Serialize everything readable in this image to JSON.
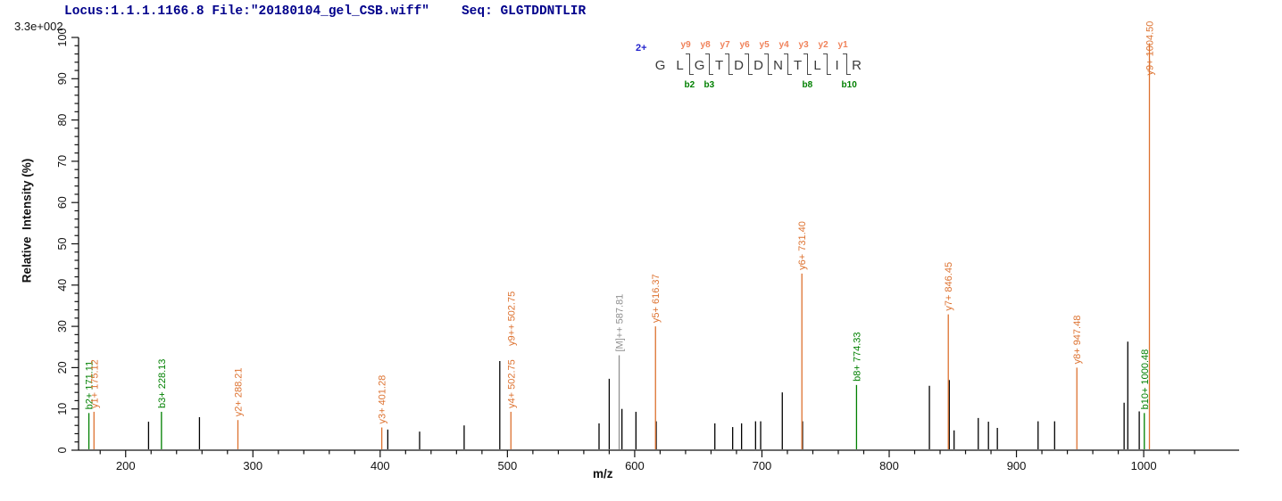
{
  "header": {
    "locus_file": "Locus:1.1.1.1166.8 File:\"20180104_gel_CSB.wiff\"",
    "seq_text": "Seq: GLGTDDNTLIR",
    "max_intensity_label": "3.3e+002"
  },
  "peptide": {
    "charge_label": "2+",
    "residues": [
      "G",
      "L",
      "G",
      "T",
      "D",
      "D",
      "N",
      "T",
      "L",
      "I",
      "R"
    ],
    "cleavages": [
      {
        "after": 2,
        "y": "y9",
        "b": "b2"
      },
      {
        "after": 3,
        "y": "y8",
        "b": "b3"
      },
      {
        "after": 4,
        "y": "y7",
        "b": ""
      },
      {
        "after": 5,
        "y": "y6",
        "b": ""
      },
      {
        "after": 6,
        "y": "y5",
        "b": ""
      },
      {
        "after": 7,
        "y": "y4",
        "b": ""
      },
      {
        "after": 8,
        "y": "y3",
        "b": "b8"
      },
      {
        "after": 9,
        "y": "y2",
        "b": ""
      },
      {
        "after": 10,
        "y": "y1",
        "b": "b10"
      }
    ]
  },
  "chart_data": {
    "type": "bar",
    "subtype": "ms2-stick-spectrum",
    "title": "",
    "xlabel": "m/z",
    "ylabel": "Relative  Intensity (%)",
    "xlim": [
      163,
      1075
    ],
    "ylim": [
      0,
      100
    ],
    "x_major_ticks": [
      200,
      300,
      400,
      500,
      600,
      700,
      800,
      900,
      1000
    ],
    "x_minor_step": 20,
    "x_minor_range": [
      180,
      1040
    ],
    "y_major_ticks": [
      0,
      10,
      20,
      30,
      40,
      50,
      60,
      70,
      80,
      90,
      100
    ],
    "y_minor_step": 2,
    "grid": false,
    "legend": "none",
    "peaks": [
      {
        "mz": 171.11,
        "intensity": 9.0,
        "type": "b",
        "label": "b2+ 171.11"
      },
      {
        "mz": 175.12,
        "intensity": 9.3,
        "type": "y",
        "label": "y1+ 175.12"
      },
      {
        "mz": 218.0,
        "intensity": 6.9,
        "type": "peak",
        "label": ""
      },
      {
        "mz": 228.13,
        "intensity": 9.3,
        "type": "b",
        "label": "b3+ 228.13"
      },
      {
        "mz": 258.0,
        "intensity": 8.0,
        "type": "peak",
        "label": ""
      },
      {
        "mz": 288.21,
        "intensity": 7.3,
        "type": "y",
        "label": "y2+ 288.21"
      },
      {
        "mz": 401.28,
        "intensity": 5.5,
        "type": "y",
        "label": "y3+ 401.28"
      },
      {
        "mz": 406.0,
        "intensity": 5.0,
        "type": "peak",
        "label": ""
      },
      {
        "mz": 431.0,
        "intensity": 4.5,
        "type": "peak",
        "label": ""
      },
      {
        "mz": 466.0,
        "intensity": 6.0,
        "type": "peak",
        "label": ""
      },
      {
        "mz": 494.0,
        "intensity": 21.6,
        "type": "peak",
        "label": ""
      },
      {
        "mz": 502.75,
        "intensity": 9.3,
        "type": "y",
        "label": "y4+ 502.75",
        "label2": "y9++ 502.75"
      },
      {
        "mz": 572.0,
        "intensity": 6.5,
        "type": "peak",
        "label": ""
      },
      {
        "mz": 580.0,
        "intensity": 17.3,
        "type": "peak",
        "label": ""
      },
      {
        "mz": 587.81,
        "intensity": 23.0,
        "type": "precursor",
        "label": "[M]++ 587.81"
      },
      {
        "mz": 590.0,
        "intensity": 10.0,
        "type": "peak",
        "label": ""
      },
      {
        "mz": 601.0,
        "intensity": 9.3,
        "type": "peak",
        "label": ""
      },
      {
        "mz": 616.37,
        "intensity": 30.0,
        "type": "y",
        "label": "y5+ 616.37"
      },
      {
        "mz": 616.9,
        "intensity": 7.0,
        "type": "peak",
        "label": ""
      },
      {
        "mz": 663.0,
        "intensity": 6.5,
        "type": "peak",
        "label": ""
      },
      {
        "mz": 677.0,
        "intensity": 5.6,
        "type": "peak",
        "label": ""
      },
      {
        "mz": 684.0,
        "intensity": 6.5,
        "type": "peak",
        "label": ""
      },
      {
        "mz": 695.0,
        "intensity": 7.0,
        "type": "peak",
        "label": ""
      },
      {
        "mz": 699.0,
        "intensity": 7.0,
        "type": "peak",
        "label": ""
      },
      {
        "mz": 716.0,
        "intensity": 14.0,
        "type": "peak",
        "label": ""
      },
      {
        "mz": 731.4,
        "intensity": 42.8,
        "type": "y",
        "label": "y6+ 731.40"
      },
      {
        "mz": 731.9,
        "intensity": 7.0,
        "type": "peak",
        "label": ""
      },
      {
        "mz": 774.33,
        "intensity": 15.8,
        "type": "b",
        "label": "b8+ 774.33"
      },
      {
        "mz": 831.6,
        "intensity": 15.6,
        "type": "peak",
        "label": ""
      },
      {
        "mz": 846.45,
        "intensity": 32.9,
        "type": "y",
        "label": "y7+ 846.45"
      },
      {
        "mz": 847.2,
        "intensity": 17.0,
        "type": "peak",
        "label": ""
      },
      {
        "mz": 851.0,
        "intensity": 4.8,
        "type": "peak",
        "label": ""
      },
      {
        "mz": 870.0,
        "intensity": 7.8,
        "type": "peak",
        "label": ""
      },
      {
        "mz": 878.0,
        "intensity": 6.9,
        "type": "peak",
        "label": ""
      },
      {
        "mz": 885.0,
        "intensity": 5.4,
        "type": "peak",
        "label": ""
      },
      {
        "mz": 917.0,
        "intensity": 7.0,
        "type": "peak",
        "label": ""
      },
      {
        "mz": 930.0,
        "intensity": 7.0,
        "type": "peak",
        "label": ""
      },
      {
        "mz": 947.48,
        "intensity": 20.0,
        "type": "y",
        "label": "y8+ 947.48"
      },
      {
        "mz": 984.6,
        "intensity": 11.5,
        "type": "peak",
        "label": ""
      },
      {
        "mz": 987.5,
        "intensity": 26.3,
        "type": "peak",
        "label": ""
      },
      {
        "mz": 996.5,
        "intensity": 9.4,
        "type": "peak",
        "label": ""
      },
      {
        "mz": 1000.48,
        "intensity": 9.0,
        "type": "b",
        "label": "b10+ 1000.48"
      },
      {
        "mz": 1004.5,
        "intensity": 98.6,
        "type": "y",
        "label": "y9+ 1004.50"
      }
    ]
  },
  "colors": {
    "y_ion": "#DD7230",
    "b_ion": "#008000",
    "precursor": "#909090",
    "peak": "#000000",
    "axis": "#111111",
    "header_text": "#00008B",
    "charge": "#2222CC",
    "seq_y_label": "#F0825A",
    "seq_b_label": "#008000"
  }
}
